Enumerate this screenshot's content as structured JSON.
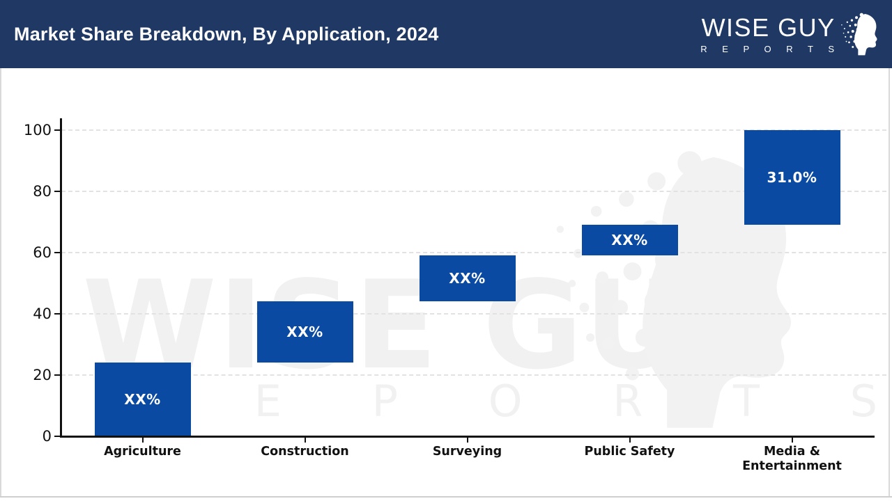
{
  "header": {
    "title": "Market Share Breakdown, By Application, 2024",
    "logo_line1": "WISE GUY",
    "logo_line2": "R E P O R T S"
  },
  "watermark": {
    "line1": "WISE GUY",
    "line2": "R E P O R T S"
  },
  "colors": {
    "header_bg": "#1f3864",
    "bar": "#0b4aa2",
    "grid": "#e2e2e2",
    "axis": "#111111",
    "watermark": "#f1f1f1"
  },
  "chart_data": {
    "type": "bar",
    "subtype": "waterfall",
    "title": "Market Share Breakdown, By Application, 2024",
    "categories": [
      "Agriculture",
      "Construction",
      "Surveying",
      "Public Safety",
      "Media &\nEntertainment"
    ],
    "segments": [
      {
        "category": "Agriculture",
        "start": 0,
        "end": 24,
        "label": "XX%"
      },
      {
        "category": "Construction",
        "start": 24,
        "end": 44,
        "label": "XX%"
      },
      {
        "category": "Surveying",
        "start": 44,
        "end": 59,
        "label": "XX%"
      },
      {
        "category": "Public Safety",
        "start": 59,
        "end": 69,
        "label": "XX%"
      },
      {
        "category": "Media & Entertainment",
        "start": 69,
        "end": 100,
        "label": "31.0%"
      }
    ],
    "displayed_values": [
      "XX%",
      "XX%",
      "XX%",
      "XX%",
      "31.0%"
    ],
    "ylim": [
      0,
      100
    ],
    "yticks": [
      0,
      20,
      40,
      60,
      80,
      100
    ],
    "xlabel": "",
    "ylabel": "",
    "grid": "horizontal-dashed",
    "legend": "none"
  }
}
